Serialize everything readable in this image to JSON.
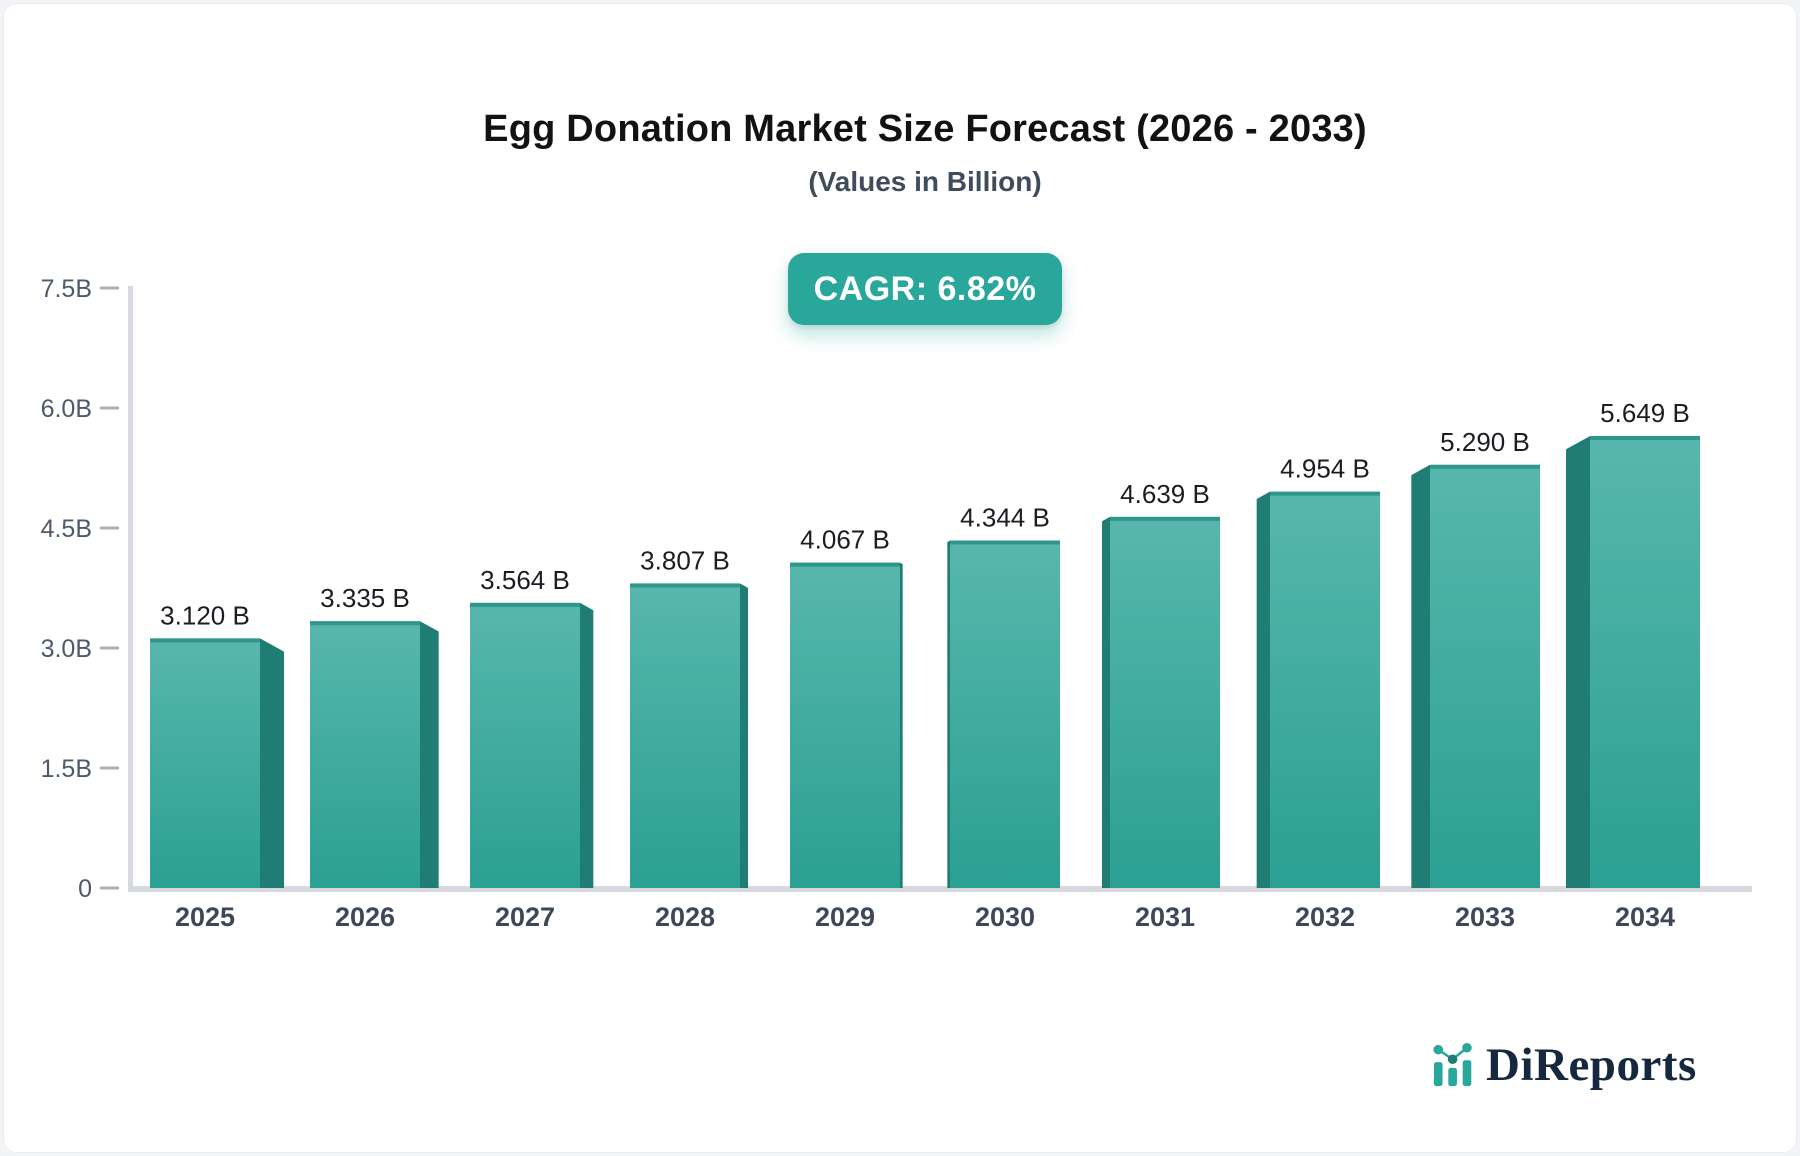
{
  "header": {
    "title": "Egg Donation Market Size Forecast (2026 - 2033)",
    "subtitle": "(Values in Billion)",
    "cagr_badge": "CAGR: 6.82%"
  },
  "brand": {
    "name": "DiReports"
  },
  "chart_data": {
    "type": "bar",
    "title": "Egg Donation Market Size Forecast (2026 - 2033)",
    "subtitle": "(Values in Billion)",
    "annotation": "CAGR: 6.82%",
    "categories": [
      "2025",
      "2026",
      "2027",
      "2028",
      "2029",
      "2030",
      "2031",
      "2032",
      "2033",
      "2034"
    ],
    "values": [
      3.12,
      3.335,
      3.564,
      3.807,
      4.067,
      4.344,
      4.639,
      4.954,
      5.29,
      5.649
    ],
    "value_labels": [
      "3.120 B",
      "3.335 B",
      "3.564 B",
      "3.807 B",
      "4.067 B",
      "4.344 B",
      "4.639 B",
      "4.954 B",
      "5.290 B",
      "5.649 B"
    ],
    "xlabel": "",
    "ylabel": "",
    "ylim": [
      0,
      7.5
    ],
    "ytick_values": [
      0,
      1.5,
      3.0,
      4.5,
      6.0,
      7.5
    ],
    "ytick_labels": [
      "0",
      "1.5B",
      "3.0B",
      "4.5B",
      "6.0B",
      "7.5B"
    ],
    "grid": "off",
    "legend": "none",
    "bar_style": "3d-perspective"
  },
  "colors": {
    "accent": "#2aa79b",
    "bar_front_top": "#58b7ac",
    "bar_front_bottom": "#2ba093",
    "bar_side": "#1f7d74",
    "bar_top_edge": "#2f968c",
    "axis_line": "#d6d9de",
    "tick_dash": "#aab1ba",
    "tick_label": "#4d5a6b",
    "year_label": "#3c4858",
    "value_label": "#1a1d22",
    "brand_navy": "#16283e"
  }
}
